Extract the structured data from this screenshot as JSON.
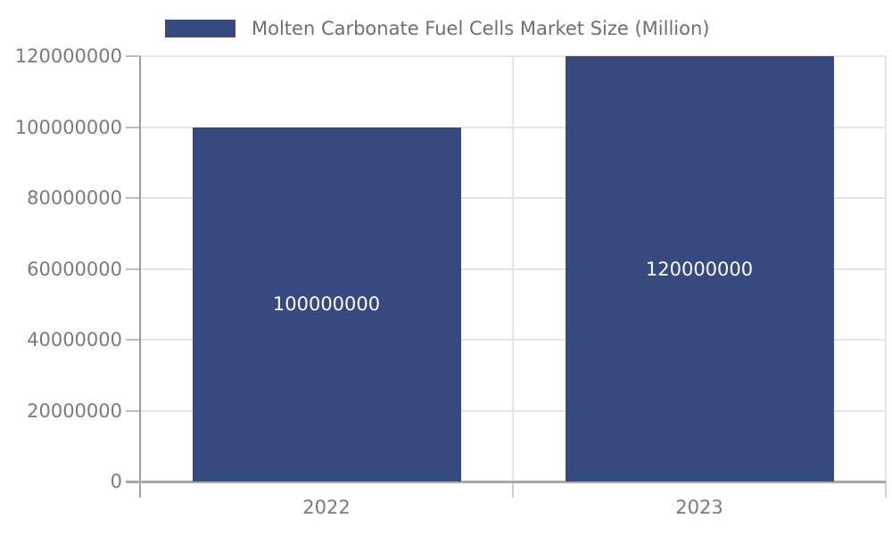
{
  "legend": {
    "label": "Molten Carbonate Fuel Cells Market Size (Million)"
  },
  "chart_data": {
    "type": "bar",
    "title": "Molten Carbonate Fuel Cells Market Size (Million)",
    "categories": [
      "2022",
      "2023"
    ],
    "values": [
      100000000,
      120000000
    ],
    "bar_labels": [
      "100000000",
      "120000000"
    ],
    "ytick_labels": [
      "0",
      "20000000",
      "40000000",
      "60000000",
      "80000000",
      "100000000",
      "120000000"
    ],
    "yticks": [
      0,
      20000000,
      40000000,
      60000000,
      80000000,
      100000000,
      120000000
    ],
    "ylim": [
      0,
      120000000
    ],
    "xlabel": "",
    "ylabel": "",
    "grid": true,
    "legend_position": "top",
    "colors": {
      "bar": "#374a80",
      "bar_label_text": "#fafafa",
      "tick_text": "#7a7a7a",
      "legend_text": "#6e6e6e",
      "axis_line": "#a9a9a9",
      "gridline": "#e4e4e4",
      "background": "#ffffff"
    }
  }
}
